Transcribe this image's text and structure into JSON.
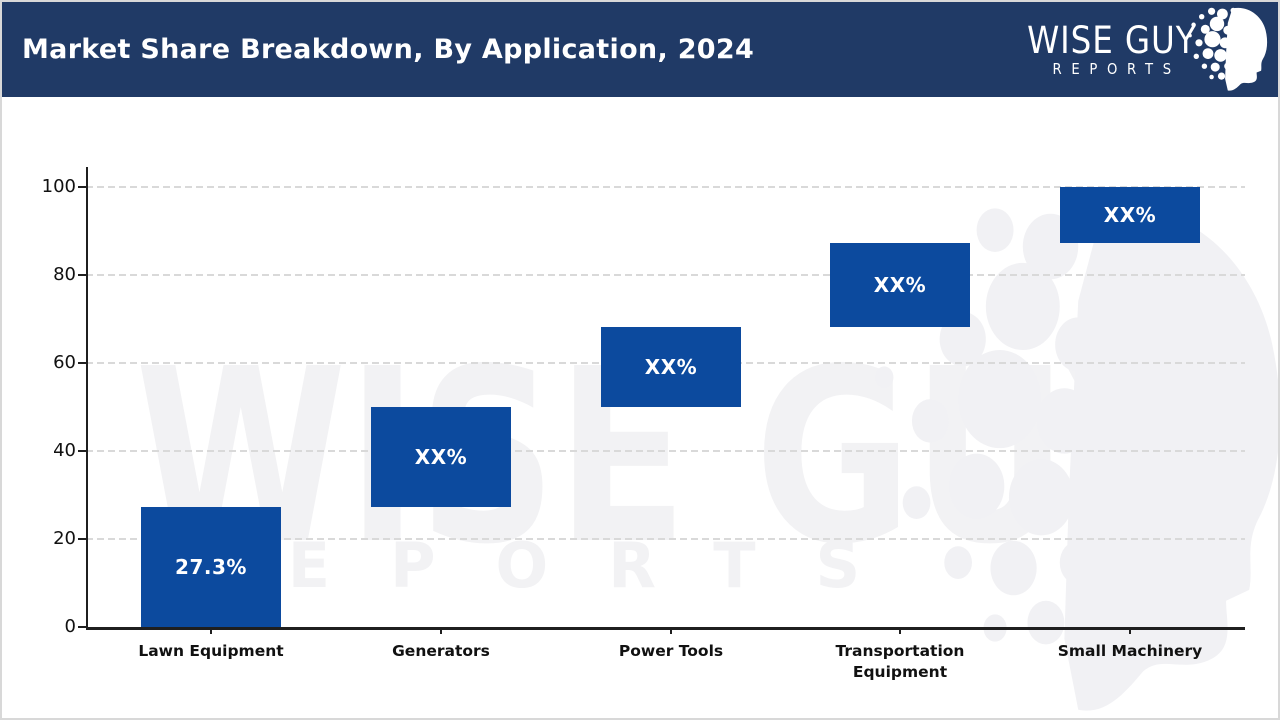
{
  "header": {
    "title": "Market Share Breakdown, By Application, 2024",
    "logo_line1": "WISE GUY",
    "logo_line2": "REPORTS",
    "bg_color": "#203a66"
  },
  "watermark": {
    "line1": "WISE GUY",
    "line2": "REPORTS"
  },
  "chart_data": {
    "type": "bar",
    "subtype": "waterfall-floating-bars",
    "title": "Market Share Breakdown, By Application, 2024",
    "categories": [
      "Lawn Equipment",
      "Generators",
      "Power Tools",
      "Transportation Equipment",
      "Small Machinery"
    ],
    "segments": [
      {
        "category": "Lawn Equipment",
        "label": "27.3%",
        "start": 0,
        "end": 27.3
      },
      {
        "category": "Generators",
        "label": "XX%",
        "start": 27.3,
        "end": 50.0
      },
      {
        "category": "Power Tools",
        "label": "XX%",
        "start": 50.0,
        "end": 68.2
      },
      {
        "category": "Transportation Equipment",
        "label": "XX%",
        "start": 68.2,
        "end": 87.2
      },
      {
        "category": "Small Machinery",
        "label": "XX%",
        "start": 87.2,
        "end": 100.0
      }
    ],
    "y_ticks": [
      0,
      20,
      40,
      60,
      80,
      100
    ],
    "ylim": [
      0,
      100
    ],
    "xlabel": "",
    "ylabel": "",
    "bar_color": "#0c4a9e",
    "grid": "horizontal-dashed",
    "legend": "none"
  }
}
